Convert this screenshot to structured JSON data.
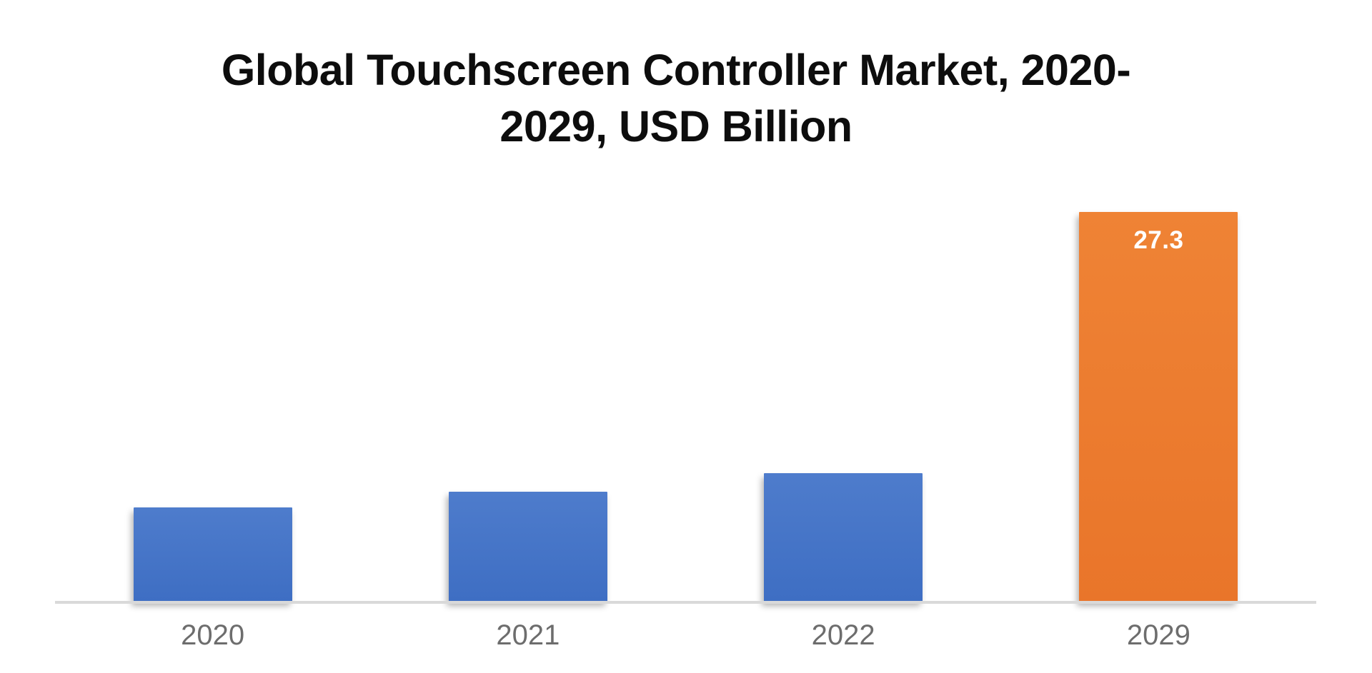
{
  "title": {
    "line1": "Global Touchscreen Controller Market, 2020-",
    "line2": "2029, USD Billion"
  },
  "chart_data": {
    "type": "bar",
    "title": "Global Touchscreen Controller Market, 2020-2029, USD Billion",
    "unit": "USD Billion",
    "categories": [
      "2020",
      "2021",
      "2022",
      "2029"
    ],
    "values": [
      6.6,
      7.7,
      9.0,
      27.3
    ],
    "data_labels": [
      null,
      null,
      null,
      "27.3"
    ],
    "xlabel": "",
    "ylabel": "",
    "ylim": [
      0,
      27.3
    ],
    "grid": false,
    "legend": false,
    "y_axis_visible": false,
    "bar_colors": [
      "#3E6EC3",
      "#3E6EC3",
      "#3E6EC3",
      "#E9752A"
    ],
    "bar_colors_top": [
      "#4E7CCC",
      "#4E7CCC",
      "#4E7CCC",
      "#EF8335"
    ],
    "value_label_color": "#FFFFFF",
    "axis_line_color": "#D9D9D9",
    "category_label_color": "#6D6D6D",
    "title_color": "#0D0D0D",
    "background_color": "#FFFFFF"
  }
}
